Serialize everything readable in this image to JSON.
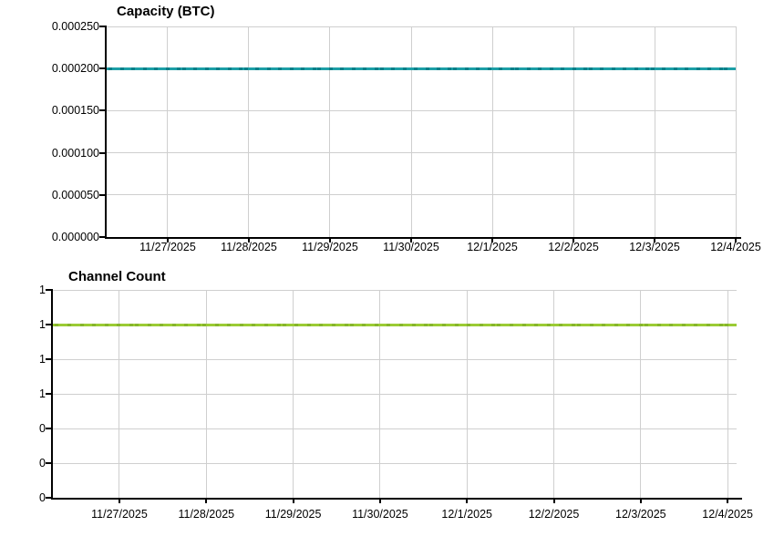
{
  "page": {
    "background": "#ffffff"
  },
  "colors": {
    "grid": "#cfcfcf",
    "axis": "#000000",
    "text": "#000000"
  },
  "chart_data": [
    {
      "type": "line",
      "title": "Capacity (BTC)",
      "x": [
        "11/27/2025",
        "11/28/2025",
        "11/29/2025",
        "11/30/2025",
        "12/1/2025",
        "12/2/2025",
        "12/3/2025",
        "12/4/2025"
      ],
      "series": [
        {
          "name": "Capacity (BTC)",
          "values": [
            0.0002,
            0.0002,
            0.0002,
            0.0002,
            0.0002,
            0.0002,
            0.0002,
            0.0002
          ]
        }
      ],
      "constant_value": 0.0002,
      "ylim": [
        0,
        0.00025
      ],
      "y_tick_labels": [
        "0.000250",
        "0.000200",
        "0.000150",
        "0.000100",
        "0.000050",
        "0.000000"
      ],
      "y_tick_values": [
        0.00025,
        0.0002,
        0.00015,
        0.0001,
        5e-05,
        0
      ],
      "line_color": "#1d9fa6",
      "marker_color": "#0d7f89",
      "grid": true,
      "legend": "none"
    },
    {
      "type": "line",
      "title": "Channel Count",
      "x": [
        "11/27/2025",
        "11/28/2025",
        "11/29/2025",
        "11/30/2025",
        "12/1/2025",
        "12/2/2025",
        "12/3/2025",
        "12/4/2025"
      ],
      "series": [
        {
          "name": "Channel Count",
          "values": [
            1,
            1,
            1,
            1,
            1,
            1,
            1,
            1
          ]
        }
      ],
      "constant_value": 1,
      "ylim": [
        0,
        1.2
      ],
      "y_tick_labels": [
        "1",
        "1",
        "1",
        "1",
        "0",
        "0",
        "0"
      ],
      "y_tick_values": [
        1.2,
        1.0,
        0.8,
        0.6,
        0.4,
        0.2,
        0.0
      ],
      "line_color": "#9bcb35",
      "marker_color": "#86b52c",
      "grid": true,
      "legend": "none"
    }
  ]
}
